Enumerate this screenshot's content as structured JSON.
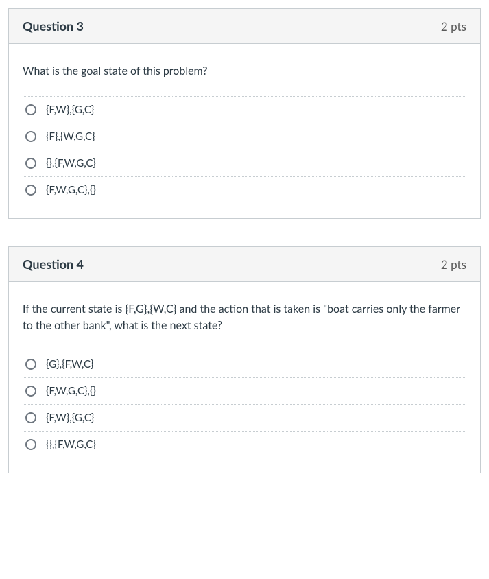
{
  "questions": [
    {
      "title": "Question 3",
      "points": "2 pts",
      "prompt": "What is the goal state of this problem?",
      "options": [
        "{F,W},{G,C}",
        "{F},{W,G,C}",
        "{},{F,W,G,C}",
        "{F,W,G,C},{}"
      ]
    },
    {
      "title": "Question 4",
      "points": "2 pts",
      "prompt": "If the current state is {F,G},{W,C} and the action that is taken is \"boat carries only the farmer to the other bank\", what is the next state?",
      "options": [
        "{G},{F,W,C}",
        "{F,W,G,C},{}",
        "{F,W},{G,C}",
        "{},{F,W,G,C}"
      ]
    }
  ],
  "styles": {
    "card_border": "#c7cdd1",
    "header_bg": "#f5f5f5",
    "text_color": "#2d3b45",
    "points_color": "#595959",
    "radio_border": "#6f7780",
    "background": "#ffffff"
  }
}
